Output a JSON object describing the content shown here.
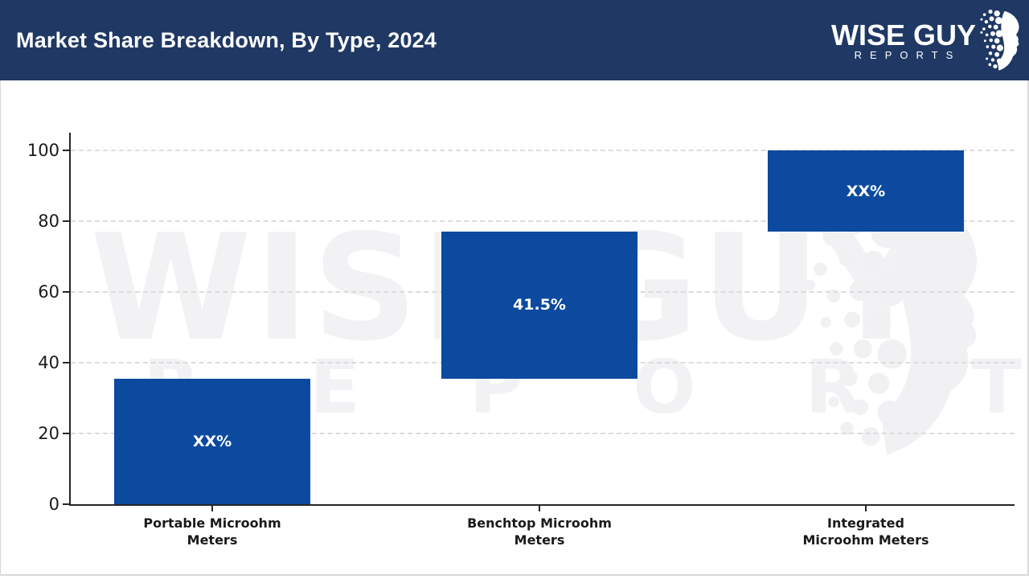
{
  "header": {
    "title": "Market Share Breakdown, By Type, 2024",
    "bg_color": "#1f3864",
    "logo": {
      "line1": "WISE GUY",
      "line2": "REPORTS"
    }
  },
  "watermark": {
    "line1": "WISE GUY",
    "line2": "R E P O R T S"
  },
  "chart_data": {
    "type": "bar",
    "subtype": "waterfall-cumulative",
    "title": "Market Share Breakdown, By Type, 2024",
    "categories": [
      "Portable Microohm Meters",
      "Benchtop Microohm Meters",
      "Integrated Microohm Meters"
    ],
    "category_label_lines": [
      [
        "Portable Microohm",
        "Meters"
      ],
      [
        "Benchtop Microohm",
        "Meters"
      ],
      [
        "Integrated",
        "Microohm Meters"
      ]
    ],
    "series": [
      {
        "name": "Market share %",
        "values": [
          35.5,
          41.5,
          23.0
        ]
      }
    ],
    "segments": [
      {
        "start": 0,
        "end": 35.5
      },
      {
        "start": 35.5,
        "end": 77.0
      },
      {
        "start": 77.0,
        "end": 100.0
      }
    ],
    "bar_labels": [
      "XX%",
      "41.5%",
      "XX%"
    ],
    "y_ticks": [
      0,
      20,
      40,
      60,
      80,
      100
    ],
    "ylim": [
      0,
      105
    ],
    "grid": "horizontal-dashed",
    "legend": "none",
    "bar_color": "#0b4a9f",
    "bar_label_color": "#ffffff",
    "axis_color": "#262626",
    "grid_color": "#dcdcdc"
  }
}
